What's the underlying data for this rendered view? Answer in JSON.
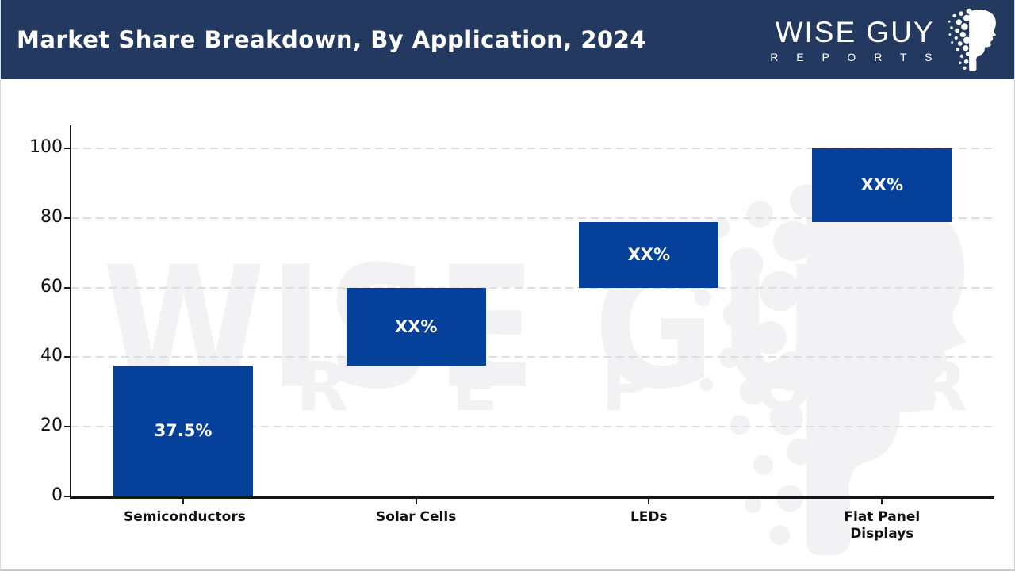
{
  "header": {
    "title": "Market Share Breakdown, By Application, 2024",
    "bg_color": "#233960",
    "logo": {
      "line1": "WISE GUY",
      "line2": "R E P O R T S"
    }
  },
  "watermark": {
    "line1": "WISE GUY",
    "line2": "R E P O R T S"
  },
  "chart_data": {
    "type": "bar",
    "subtype": "waterfall",
    "title": "",
    "xlabel": "",
    "ylabel": "",
    "categories": [
      "Semiconductors",
      "Solar Cells",
      "LEDs",
      "Flat Panel Displays"
    ],
    "segments": [
      {
        "label": "Semiconductors",
        "start": 0,
        "end": 37.5,
        "value_label": "37.5%"
      },
      {
        "label": "Solar Cells",
        "start": 37.5,
        "end": 60,
        "value_label": "XX%"
      },
      {
        "label": "LEDs",
        "start": 60,
        "end": 78.75,
        "value_label": "XX%"
      },
      {
        "label": "Flat Panel Displays",
        "start": 78.75,
        "end": 100,
        "value_label": "XX%"
      }
    ],
    "y_ticks": [
      0,
      20,
      40,
      60,
      80,
      100
    ],
    "ylim": [
      0,
      106
    ],
    "bar_color": "#05409B",
    "grid": true,
    "grid_style": "dashed",
    "legend": false
  }
}
